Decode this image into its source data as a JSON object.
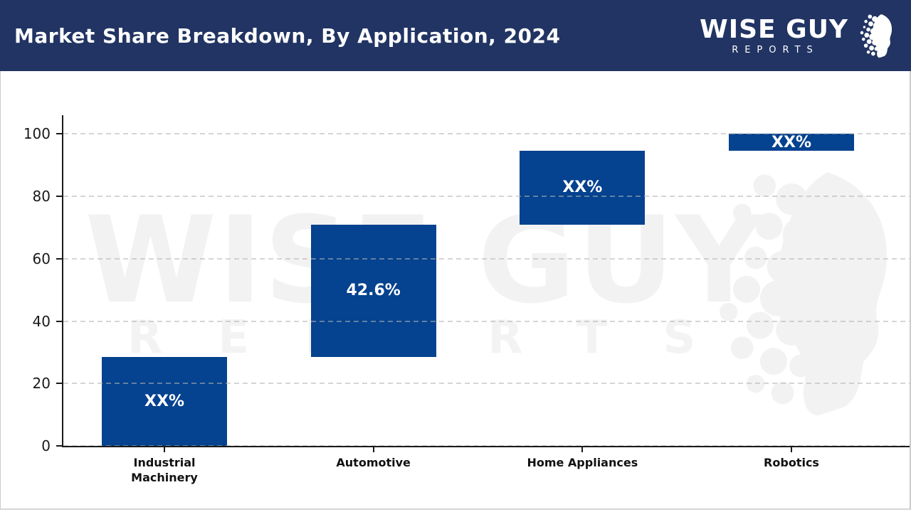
{
  "header": {
    "title": "Market Share Breakdown, By Application, 2024",
    "logo": {
      "line1": "WISE GUY",
      "line2": "REPORTS"
    }
  },
  "watermark": {
    "line1": "WISE GUY",
    "line2": "REPORTS"
  },
  "chart_data": {
    "type": "bar",
    "subtype": "waterfall",
    "title": "Market Share Breakdown, By Application, 2024",
    "categories": [
      "Industrial\nMachinery",
      "Automotive",
      "Home Appliances",
      "Robotics"
    ],
    "segments": [
      {
        "category": "Industrial Machinery",
        "start": 0,
        "end": 28.4,
        "label": "XX%"
      },
      {
        "category": "Automotive",
        "start": 28.4,
        "end": 71.0,
        "label": "42.6%"
      },
      {
        "category": "Home Appliances",
        "start": 71.0,
        "end": 94.6,
        "label": "XX%"
      },
      {
        "category": "Robotics",
        "start": 94.6,
        "end": 100.0,
        "label": "XX%"
      }
    ],
    "yticks": [
      0,
      20,
      40,
      60,
      80,
      100
    ],
    "ylim": [
      0,
      106
    ],
    "grid": true,
    "grid_style": "dashed",
    "legend": "none",
    "bar_color": "#05428f",
    "bar_label_color": "#ffffff",
    "axis_color": "#1a1a1a",
    "header_color": "#213463",
    "xlabel": "",
    "ylabel": ""
  }
}
